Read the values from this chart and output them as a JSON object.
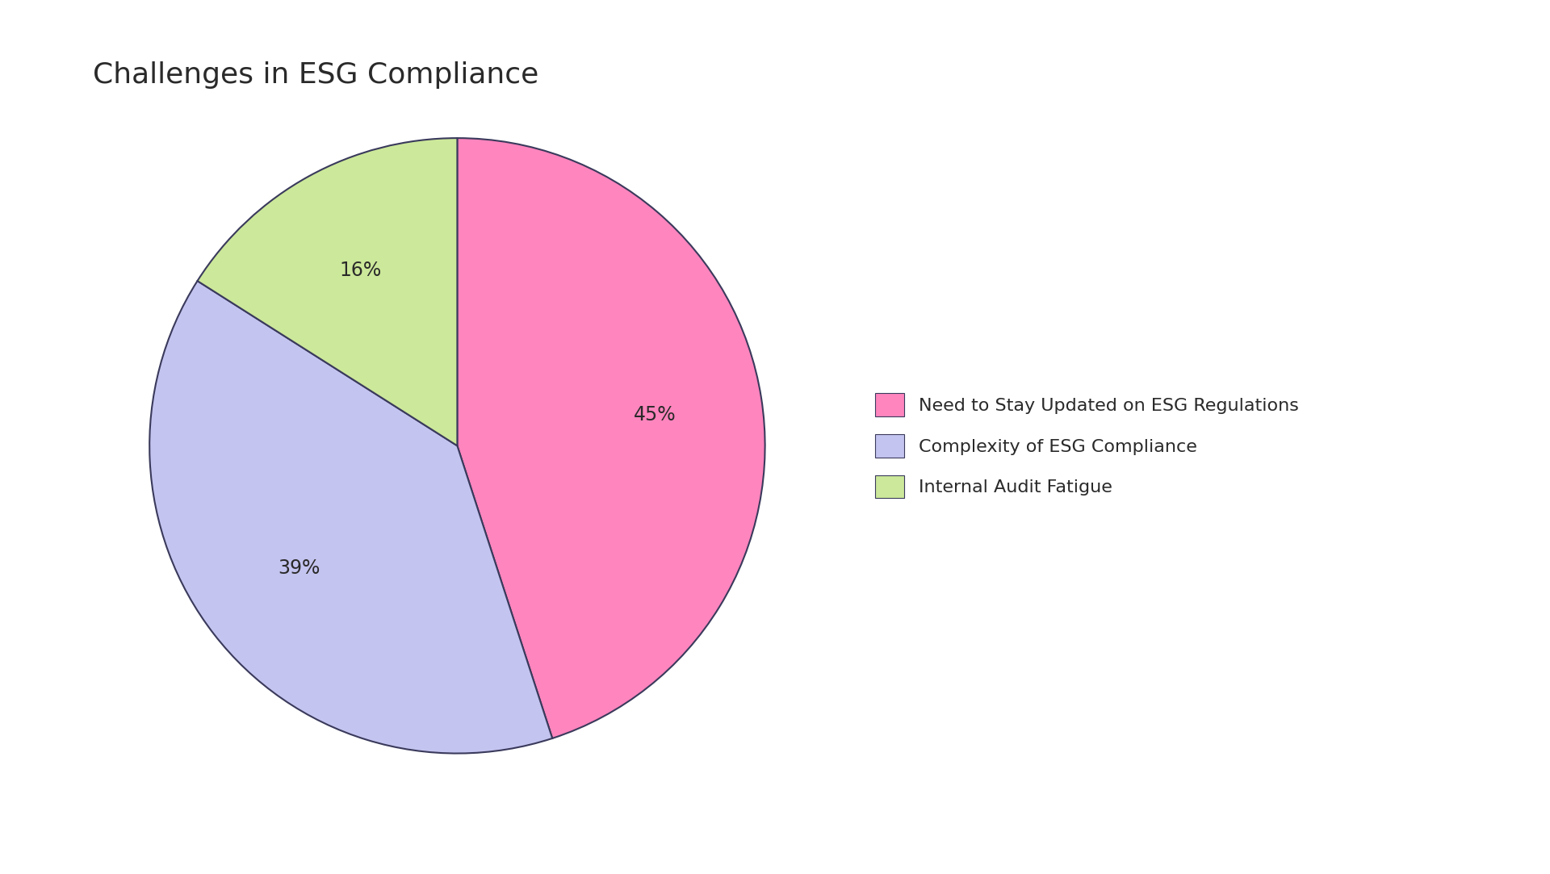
{
  "title": "Challenges in ESG Compliance",
  "labels": [
    "Need to Stay Updated on ESG Regulations",
    "Complexity of ESG Compliance",
    "Internal Audit Fatigue"
  ],
  "values": [
    45,
    39,
    16
  ],
  "colors": [
    "#FF85BE",
    "#C4C4F0",
    "#CCE89A"
  ],
  "edge_color": "#3A3A5C",
  "edge_width": 1.5,
  "text_color": "#2a2a2a",
  "background_color": "#FFFFFF",
  "title_fontsize": 26,
  "label_fontsize": 17,
  "legend_fontsize": 16,
  "startangle": 90
}
